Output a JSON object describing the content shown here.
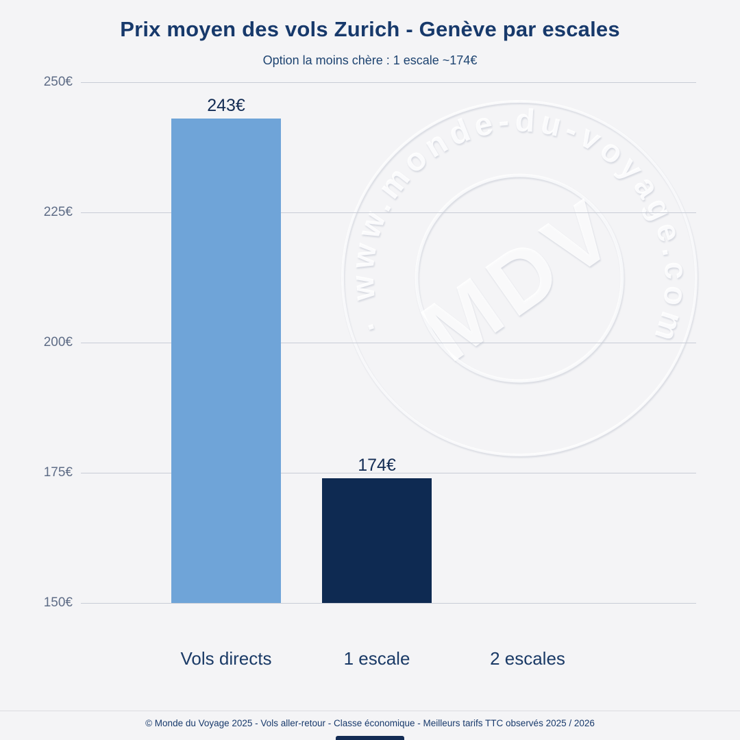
{
  "chart_data": {
    "type": "bar",
    "title": "Prix moyen des vols Zurich - Genève par escales",
    "subtitle": "Option la moins chère : 1 escale ~174€",
    "categories": [
      "Vols directs",
      "1 escale",
      "2 escales"
    ],
    "values": [
      243,
      174,
      null
    ],
    "value_labels": [
      "243€",
      "174€",
      ""
    ],
    "xlabel": "",
    "ylabel": "",
    "y_unit": "€",
    "ylim": [
      150,
      250
    ],
    "yticks": [
      250,
      225,
      200,
      175,
      150
    ],
    "bar_colors": [
      "#6fa4d8",
      "#0e2a52",
      null
    ],
    "grid": true,
    "legend": false
  },
  "watermark": {
    "ring_text": "· www.monde-du-voyage.com",
    "center_text": "MDV"
  },
  "footer": {
    "text": "© Monde du Voyage 2025 - Vols aller-retour - Classe économique - Meilleurs tarifs TTC observés 2025 / 2026"
  },
  "colors": {
    "background": "#f4f4f6",
    "title": "#17396b",
    "gridline": "#c8ccd6",
    "tick_label": "#5e6c86",
    "bar_direct": "#6fa4d8",
    "bar_one_stop": "#0e2a52",
    "bottom_bar": "#132c54"
  }
}
